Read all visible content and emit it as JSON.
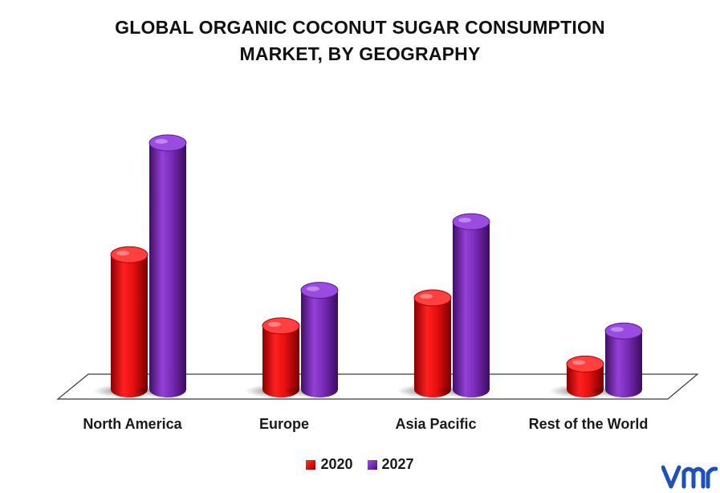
{
  "title_line1": "GLOBAL ORGANIC COCONUT SUGAR CONSUMPTION",
  "title_line2": "MARKET, BY GEOGRAPHY",
  "colors": {
    "s2020": "#e81010",
    "s2020_dark": "#8a0000",
    "s2027": "#7a2bb8",
    "s2027_dark": "#3e0f66"
  },
  "chart_data": {
    "type": "bar",
    "categories": [
      "North America",
      "Europe",
      "Asia Pacific",
      "Rest of the World"
    ],
    "series": [
      {
        "name": "2020",
        "values": [
          5.3,
          2.5,
          3.6,
          1.0
        ]
      },
      {
        "name": "2027",
        "values": [
          9.7,
          3.9,
          6.6,
          2.3
        ]
      }
    ],
    "ylim": [
      0,
      10
    ],
    "grid": false,
    "legend": "bottom"
  },
  "legend": {
    "label_2020": "2020",
    "label_2027": "2027"
  },
  "logo_text": "vmr"
}
